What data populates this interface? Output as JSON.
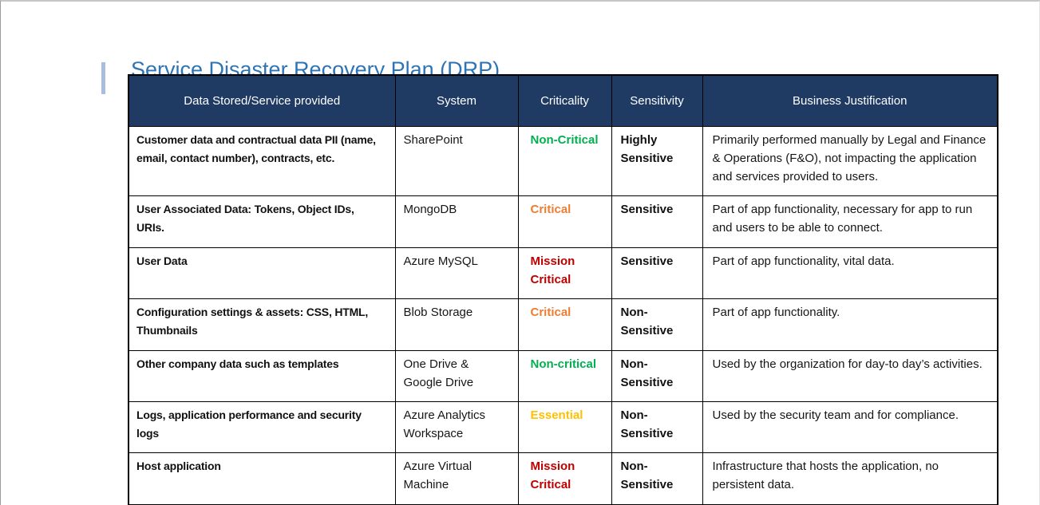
{
  "document": {
    "heading": "Service Disaster Recovery Plan (DRP)",
    "heading_color": "#2e74b5"
  },
  "table": {
    "header_bg": "#1f3a63",
    "header_text_color": "#ffffff",
    "headers": [
      "Data Stored/Service provided",
      "System",
      "Criticality",
      "Sensitivity",
      "Business Justification"
    ],
    "rows": [
      {
        "service": "Customer data and contractual data PII (name, email, contact number), contracts, etc.",
        "system": "SharePoint",
        "criticality": "Non-Critical",
        "criticality_color": "#00b050",
        "sensitivity": "Highly Sensitive",
        "justification": "Primarily performed manually by Legal and Finance & Operations (F&O), not impacting the application and services provided to users."
      },
      {
        "service": "User Associated Data: Tokens, Object IDs, URIs.",
        "system": "MongoDB",
        "criticality": "Critical",
        "criticality_color": "#ed7d31",
        "sensitivity": "Sensitive",
        "justification": "Part of app functionality, necessary for app to run and users to be able to connect."
      },
      {
        "service": "User Data",
        "system": "Azure MySQL",
        "criticality": "Mission Critical",
        "criticality_color": "#c00000",
        "sensitivity": "Sensitive",
        "justification": "Part of app functionality, vital data."
      },
      {
        "service": "Configuration settings & assets: CSS, HTML, Thumbnails",
        "system": "Blob Storage",
        "criticality": "Critical",
        "criticality_color": "#ed7d31",
        "sensitivity": "Non-Sensitive",
        "justification": "Part of app functionality."
      },
      {
        "service": "Other company data such as templates",
        "system": "One Drive & Google Drive",
        "criticality": "Non-critical",
        "criticality_color": "#00b050",
        "sensitivity": "Non-Sensitive",
        "justification": "Used by the organization for day-to day’s activities."
      },
      {
        "service": "Logs, application performance and security logs",
        "system": "Azure Analytics Workspace",
        "criticality": "Essential",
        "criticality_color": "#ffc000",
        "sensitivity": "Non-Sensitive",
        "justification": "Used by the security team and for compliance."
      },
      {
        "service": "Host application",
        "system": "Azure Virtual Machine",
        "criticality": "Mission Critical",
        "criticality_color": "#c00000",
        "sensitivity": "Non-Sensitive",
        "justification": "Infrastructure that hosts the application, no persistent data."
      }
    ]
  }
}
